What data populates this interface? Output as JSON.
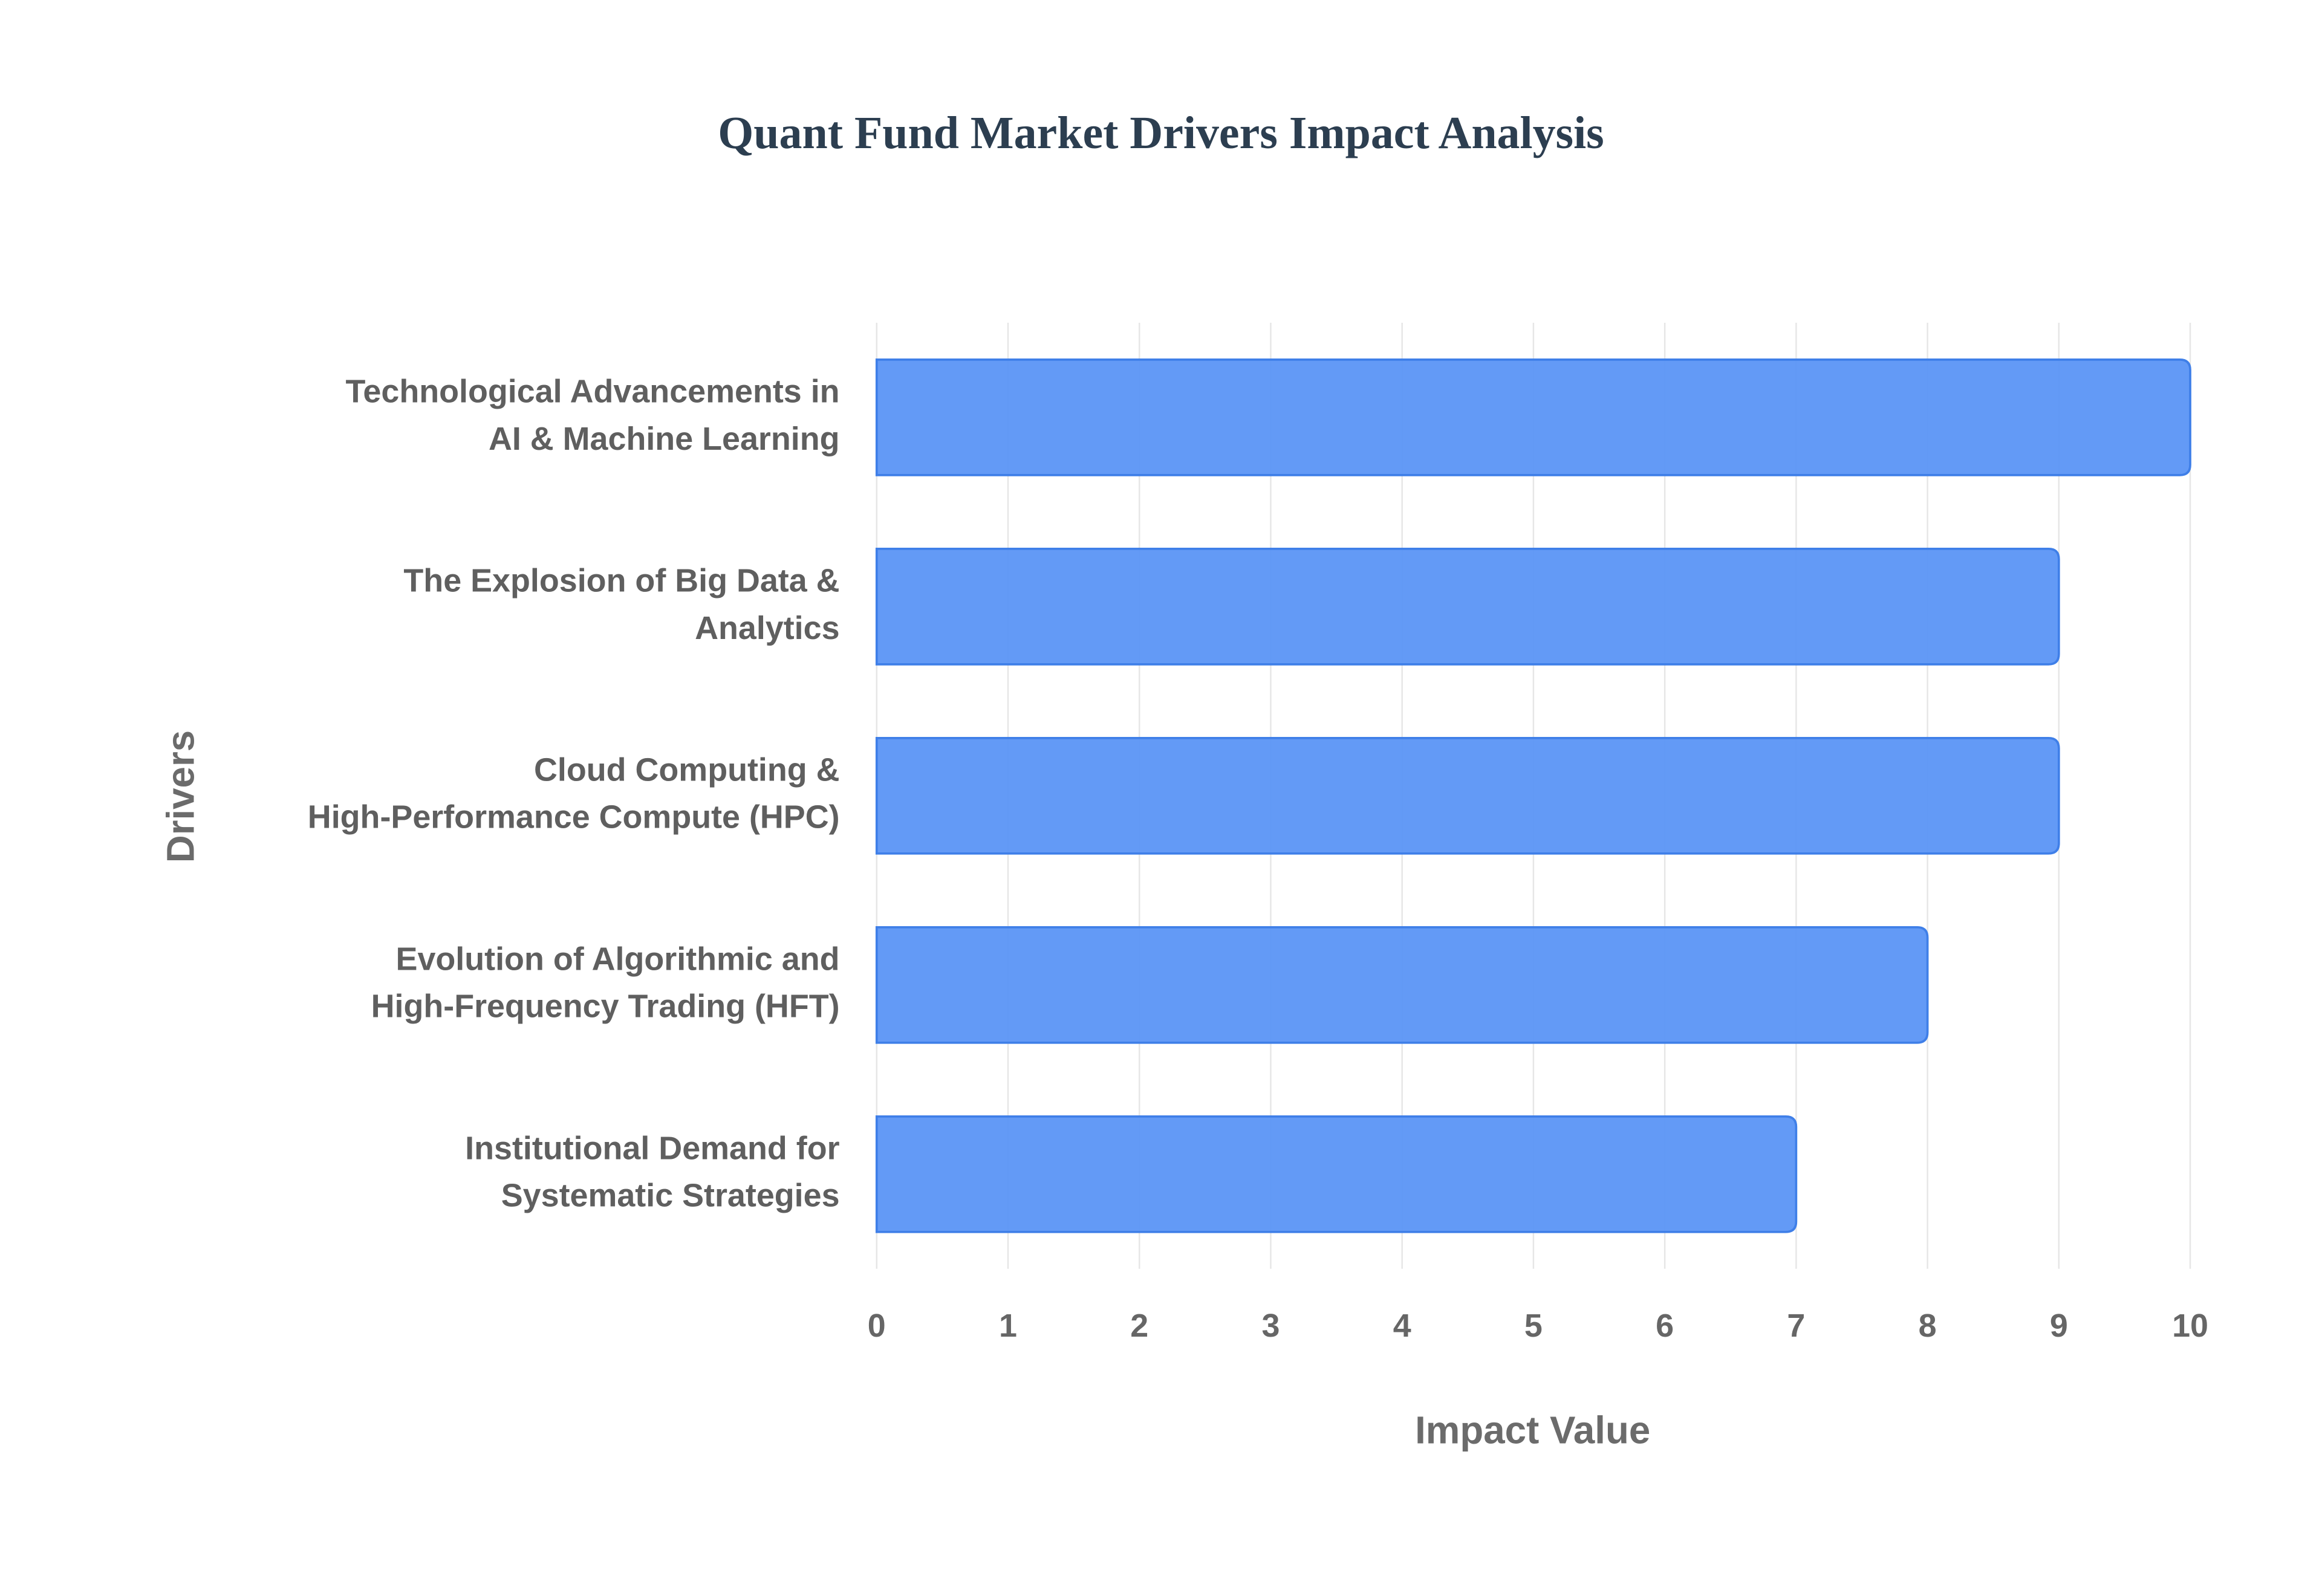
{
  "chart_data": {
    "type": "hbar",
    "title": "Quant Fund Market Drivers Impact Analysis",
    "categories": [
      [
        "Technological Advancements in",
        "AI & Machine Learning"
      ],
      [
        "The Explosion of Big Data &",
        "Analytics"
      ],
      [
        "Cloud Computing &",
        "High-Performance Compute (HPC)"
      ],
      [
        "Evolution of Algorithmic and",
        "High-Frequency Trading (HFT)"
      ],
      [
        "Institutional Demand for",
        "Systematic Strategies"
      ]
    ],
    "values": [
      10,
      9,
      9,
      8,
      7
    ],
    "color": "#5b95f5",
    "xlim": [
      0,
      10
    ],
    "xticks": [
      0,
      1,
      2,
      3,
      4,
      5,
      6,
      7,
      8,
      9,
      10
    ],
    "xlabel": "Impact Value",
    "ylabel": "Drivers",
    "grid": true
  }
}
